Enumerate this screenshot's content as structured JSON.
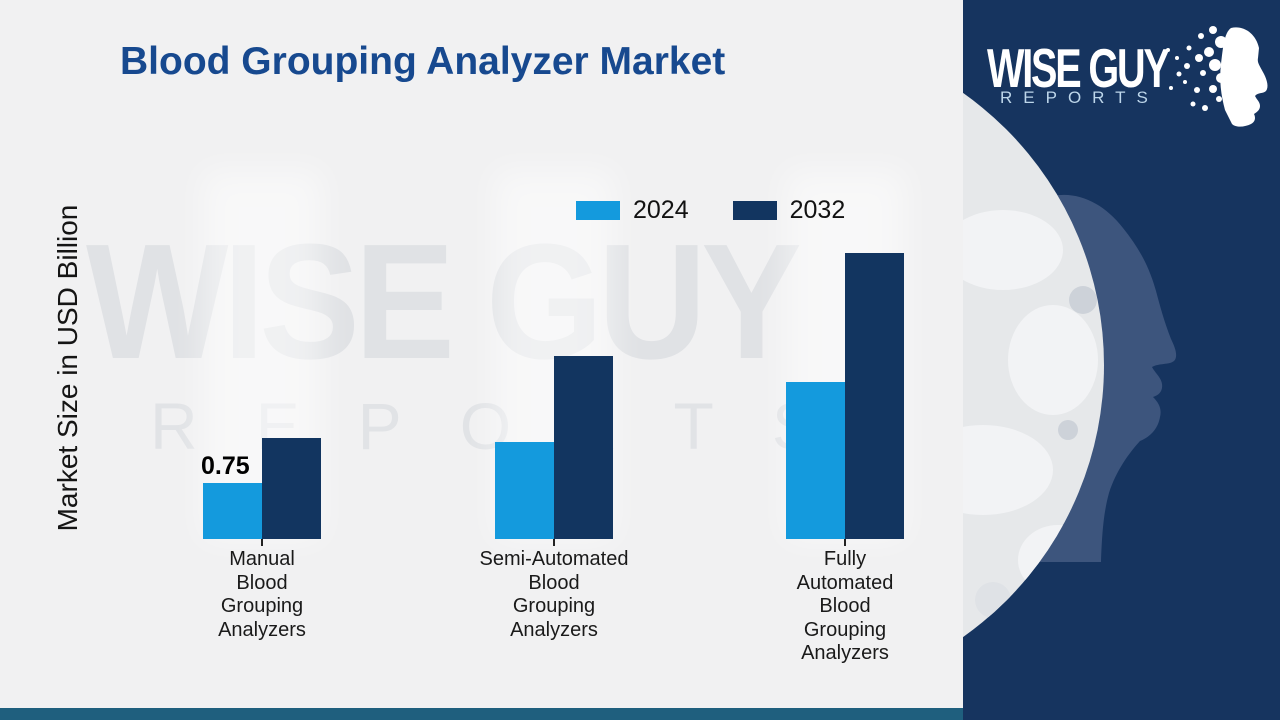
{
  "title": "Blood Grouping Analyzer Market",
  "y_axis_label": "Market Size in USD Billion",
  "watermark": {
    "line1": "WISE GUY",
    "line2": "REPORTS"
  },
  "brand": {
    "logo_line1": "WISE GUY",
    "logo_line2": "REPORTS",
    "panel_color": "#16345f",
    "face_color": "#3d557d",
    "circle_color": "#e6e8ea",
    "logo_text_color": "#ffffff",
    "logo_sub_color": "#bdd6ea"
  },
  "footer": {
    "color": "#1f5f7e"
  },
  "colors": {
    "background": "#f1f1f2",
    "title": "#17498f",
    "series_2024": "#149add",
    "series_2032": "#123560",
    "watermark": "#d3d6db"
  },
  "chart_data": {
    "type": "bar",
    "title": "Blood Grouping Analyzer Market",
    "ylabel": "Market Size in USD Billion",
    "unit": "USD Billion",
    "gridlines": false,
    "legend_position": "top-center",
    "categories": [
      "Manual\nBlood\nGrouping\nAnalyzers",
      "Semi-Automated\nBlood\nGrouping\nAnalyzers",
      "Fully\nAutomated\nBlood\nGrouping\nAnalyzers"
    ],
    "series": [
      {
        "name": "2024",
        "color": "#149add",
        "values": [
          0.75,
          1.3,
          2.1
        ],
        "data_labels": [
          "0.75",
          "",
          ""
        ]
      },
      {
        "name": "2032",
        "color": "#123560",
        "values": [
          1.35,
          2.45,
          3.83
        ],
        "data_labels": [
          "",
          "",
          ""
        ]
      }
    ]
  },
  "legend": [
    {
      "label": "2024",
      "color": "#149add"
    },
    {
      "label": "2032",
      "color": "#123560"
    }
  ]
}
